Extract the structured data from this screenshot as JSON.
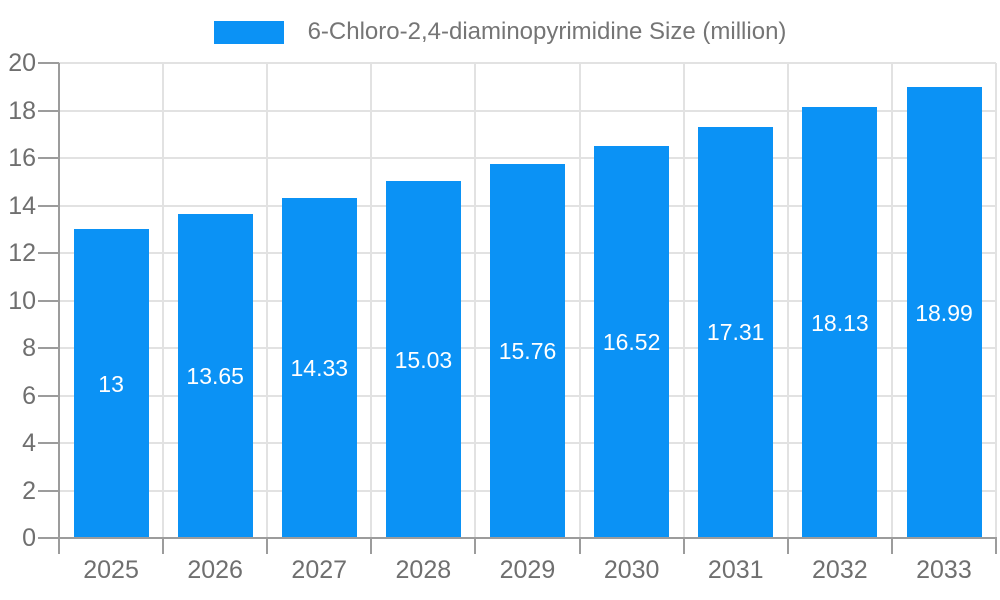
{
  "chart_data": {
    "type": "bar",
    "title": "6-Chloro-2,4-diaminopyrimidine Size (million)",
    "legend": [
      "6-Chloro-2,4-diaminopyrimidine Size (million)"
    ],
    "legend_position": "top-center",
    "categories": [
      "2025",
      "2026",
      "2027",
      "2028",
      "2029",
      "2030",
      "2031",
      "2032",
      "2033"
    ],
    "values": [
      13,
      13.65,
      14.33,
      15.03,
      15.76,
      16.52,
      17.31,
      18.13,
      18.99
    ],
    "value_labels": [
      "13",
      "13.65",
      "14.33",
      "15.03",
      "15.76",
      "16.52",
      "17.31",
      "18.13",
      "18.99"
    ],
    "xlabel": "",
    "ylabel": "",
    "ylim": [
      0,
      20
    ],
    "yticks": [
      0,
      2,
      4,
      6,
      8,
      10,
      12,
      14,
      16,
      18,
      20
    ],
    "grid": "horizontal-and-vertical",
    "value_label_position": "inside-center",
    "colors": {
      "bar": "#0b92f5",
      "grid": "#e2e2e2",
      "axis": "#9c9c9c",
      "tick_label": "#6f6f6f",
      "legend_text": "#757575",
      "value_label": "#ffffff",
      "background": "#ffffff"
    }
  }
}
